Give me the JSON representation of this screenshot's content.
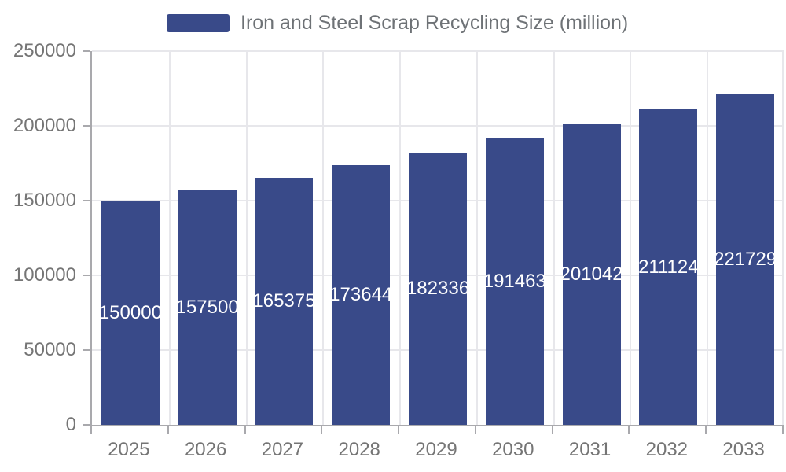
{
  "chart_data": {
    "type": "bar",
    "title": "",
    "legend": {
      "label": "Iron and Steel Scrap Recycling Size (million)",
      "position": "top"
    },
    "categories": [
      "2025",
      "2026",
      "2027",
      "2028",
      "2029",
      "2030",
      "2031",
      "2032",
      "2033"
    ],
    "series": [
      {
        "name": "Iron and Steel Scrap Recycling Size (million)",
        "values": [
          150000,
          157500,
          165375,
          173644,
          182336,
          191463,
          201042,
          211124,
          221729
        ]
      }
    ],
    "value_labels": [
      "150000",
      "157500",
      "165375",
      "173644",
      "182336",
      "191463",
      "201042",
      "211124",
      "221729"
    ],
    "xlabel": "",
    "ylabel": "",
    "ylim": [
      0,
      250000
    ],
    "y_ticks": [
      0,
      50000,
      100000,
      150000,
      200000,
      250000
    ],
    "grid": "horizontal and vertical",
    "colors": {
      "bar": "#394A89",
      "bar_value_text": "#FFFFFF",
      "axis_line": "#A9A9AD",
      "grid_line": "#E7E7EB",
      "axis_text": "#757575",
      "legend_text": "#6E7276"
    }
  }
}
